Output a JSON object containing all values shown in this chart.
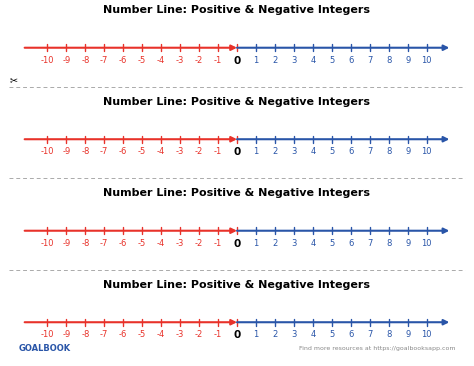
{
  "title": "Number Line: Positive & Negative Integers",
  "num_panels": 4,
  "x_min": -10,
  "x_max": 10,
  "tick_values": [
    -10,
    -9,
    -8,
    -7,
    -6,
    -5,
    -4,
    -3,
    -2,
    -1,
    0,
    1,
    2,
    3,
    4,
    5,
    6,
    7,
    8,
    9,
    10
  ],
  "red_color": "#e8322a",
  "blue_color": "#2955a8",
  "zero_label_fontsize": 7.5,
  "tick_label_fontsize": 6.0,
  "title_fontsize": 8.0,
  "bg_color": "#ffffff",
  "dashed_color": "#aaaaaa",
  "goalbook_color": "#2955a8",
  "footer_text": "Find more resources at https://goalbooksapp.com",
  "goalbook_label": "GOALBOOK",
  "goalbook_fontsize": 6.0,
  "footer_fontsize": 4.5,
  "line_lw": 1.5,
  "tick_lw": 1.0,
  "arrow_mutation_scale": 8,
  "xlim_left": -12.0,
  "xlim_right": 12.0
}
